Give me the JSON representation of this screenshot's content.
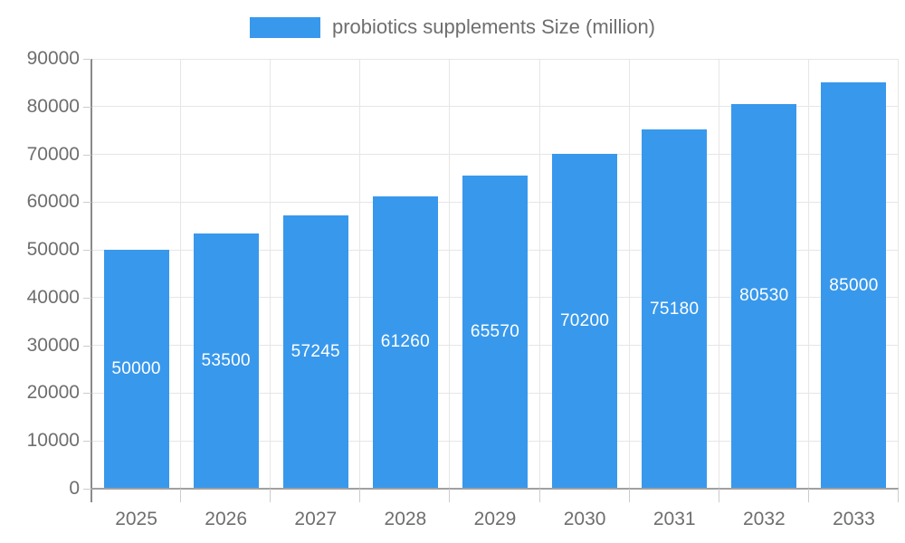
{
  "legend": {
    "label": "probiotics supplements Size (million)"
  },
  "chart_data": {
    "type": "bar",
    "title": "probiotics supplements Size (million)",
    "categories": [
      "2025",
      "2026",
      "2027",
      "2028",
      "2029",
      "2030",
      "2031",
      "2032",
      "2033"
    ],
    "values": [
      50000,
      53500,
      57245,
      61260,
      65570,
      70200,
      75180,
      80530,
      85000
    ],
    "series": [
      {
        "name": "probiotics supplements Size (million)",
        "values": [
          50000,
          53500,
          57245,
          61260,
          65570,
          70200,
          75180,
          80530,
          85000
        ]
      }
    ],
    "xlabel": "",
    "ylabel": "",
    "ylim": [
      0,
      90000
    ],
    "y_ticks": [
      0,
      10000,
      20000,
      30000,
      40000,
      50000,
      60000,
      70000,
      80000,
      90000
    ],
    "grid": true,
    "legend_position": "top-center",
    "bar_labels_visible": true,
    "colors": {
      "bar": "#3898ec",
      "bar_label": "#ffffff",
      "axis_text": "#6e6e6e",
      "gridline": "#e6e6e6",
      "axis_line_x": "#a0a0a0",
      "axis_line_y": "#8a8a8a",
      "tick": "#cccccc",
      "background": "#ffffff"
    }
  }
}
